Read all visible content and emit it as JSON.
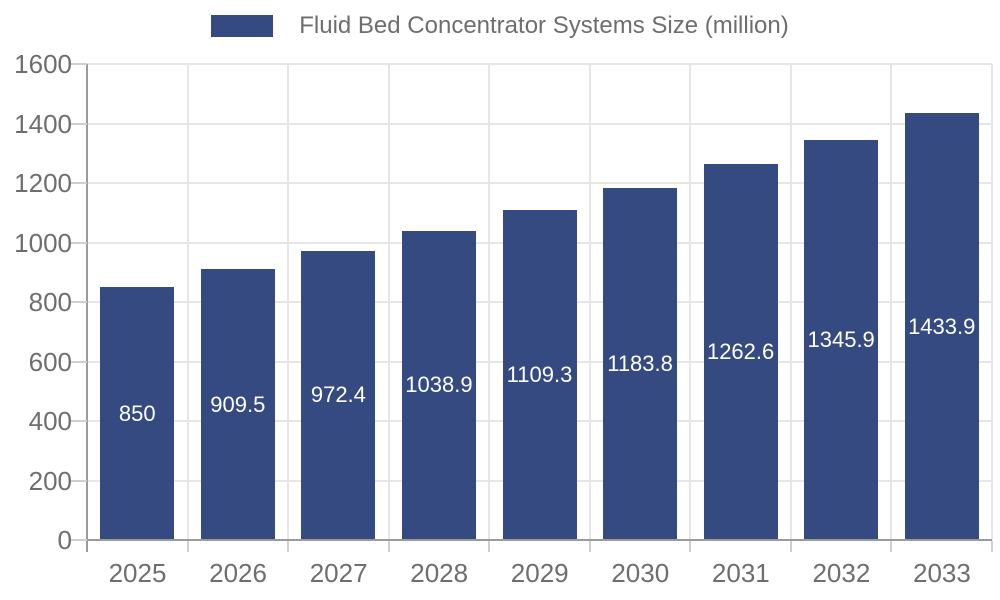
{
  "chart_data": {
    "type": "bar",
    "title": "Fluid Bed Concentrator Systems Size (million)",
    "legend": {
      "position": "top",
      "entries": [
        "Fluid Bed Concentrator Systems Size (million)"
      ]
    },
    "categories": [
      "2025",
      "2026",
      "2027",
      "2028",
      "2029",
      "2030",
      "2031",
      "2032",
      "2033"
    ],
    "series": [
      {
        "name": "Fluid Bed Concentrator Systems Size (million)",
        "values": [
          850,
          909.5,
          972.4,
          1038.9,
          1109.3,
          1183.8,
          1262.6,
          1345.9,
          1433.9
        ]
      }
    ],
    "value_labels": [
      "850",
      "909.5",
      "972.4",
      "1038.9",
      "1109.3",
      "1183.8",
      "1262.6",
      "1345.9",
      "1433.9"
    ],
    "xlabel": "",
    "ylabel": "",
    "ylim": [
      0,
      1600
    ],
    "yticks": [
      0,
      200,
      400,
      600,
      800,
      1000,
      1200,
      1400,
      1600
    ],
    "grid": true,
    "colors": {
      "bar_fill": "#364a82",
      "bar_value_text": "#ffffff",
      "grid_line": "#e6e6e6",
      "axis_line": "#9b9b9b",
      "tick_line": "#cfcfcf",
      "axis_text": "#6e6e6e",
      "legend_text": "#6e6e6e"
    }
  }
}
